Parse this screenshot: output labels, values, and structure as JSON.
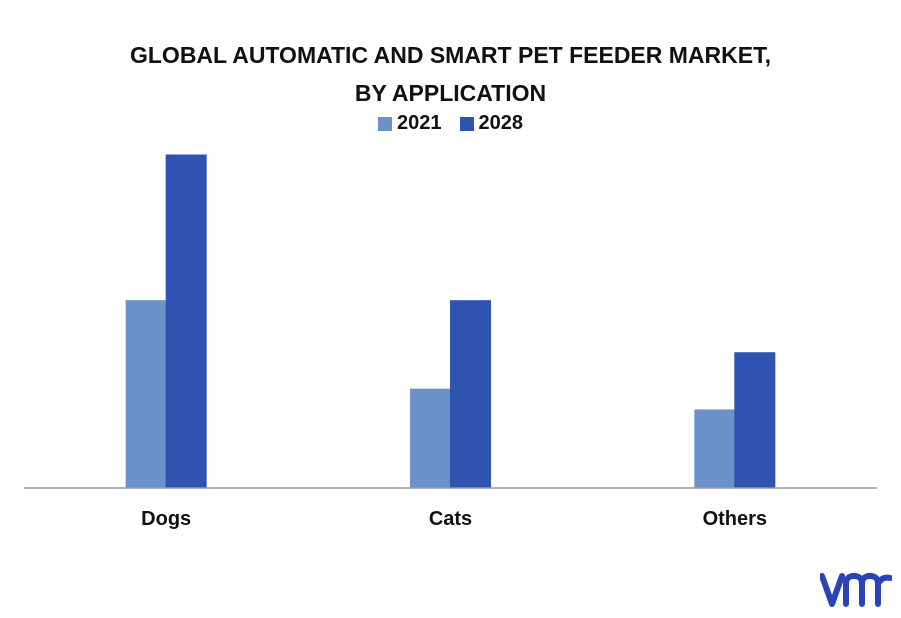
{
  "chart_data": {
    "type": "bar",
    "title_lines": [
      "GLOBAL AUTOMATIC AND SMART PET FEEDER MARKET,",
      "BY APPLICATION"
    ],
    "categories": [
      "Dogs",
      "Cats",
      "Others"
    ],
    "series": [
      {
        "name": "2021",
        "values": [
          1.8,
          0.95,
          0.75
        ],
        "color": "#6b93c9"
      },
      {
        "name": "2028",
        "values": [
          3.2,
          1.8,
          1.3
        ],
        "color": "#2e53b0"
      }
    ],
    "ylim": [
      0,
      3.2
    ],
    "grid": false,
    "legend_position": "top-center",
    "xlabel": "",
    "ylabel": ""
  },
  "brand": {
    "logo_icon": "vmr-logo-icon",
    "color": "#2a44b8"
  }
}
